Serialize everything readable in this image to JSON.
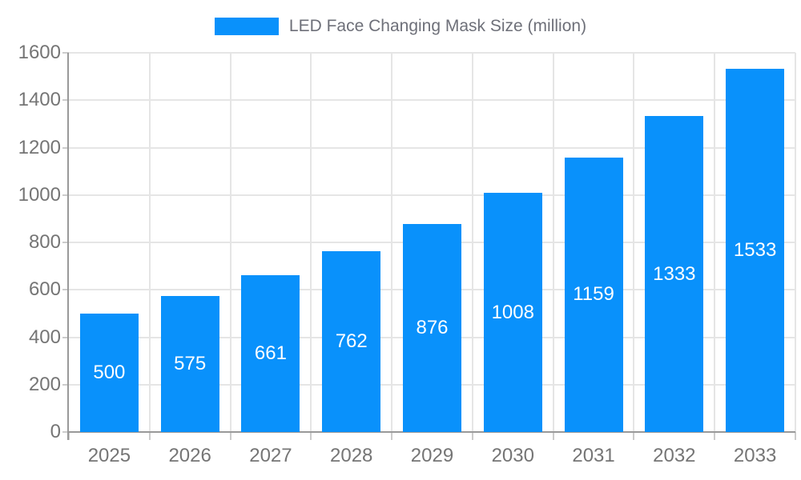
{
  "chart_data": {
    "type": "bar",
    "title": "",
    "legend": "LED Face Changing Mask Size (million)",
    "legend_position": "top",
    "categories": [
      "2025",
      "2026",
      "2027",
      "2028",
      "2029",
      "2030",
      "2031",
      "2032",
      "2033"
    ],
    "values": [
      500,
      575,
      661,
      762,
      876,
      1008,
      1159,
      1333,
      1533
    ],
    "xlabel": "",
    "ylabel": "",
    "ylim": [
      0,
      1600
    ],
    "yticks": [
      0,
      200,
      400,
      600,
      800,
      1000,
      1200,
      1400,
      1600
    ],
    "grid": true,
    "value_labels": "inside-center"
  },
  "colors": {
    "bar": "#0991fb",
    "grid": "#e5e5e5",
    "axis": "#999999",
    "tick": "#cccccc",
    "axis_text": "#757575",
    "legend_text": "#6e7079",
    "value_label_text": "#ffffff",
    "background": "#ffffff"
  }
}
